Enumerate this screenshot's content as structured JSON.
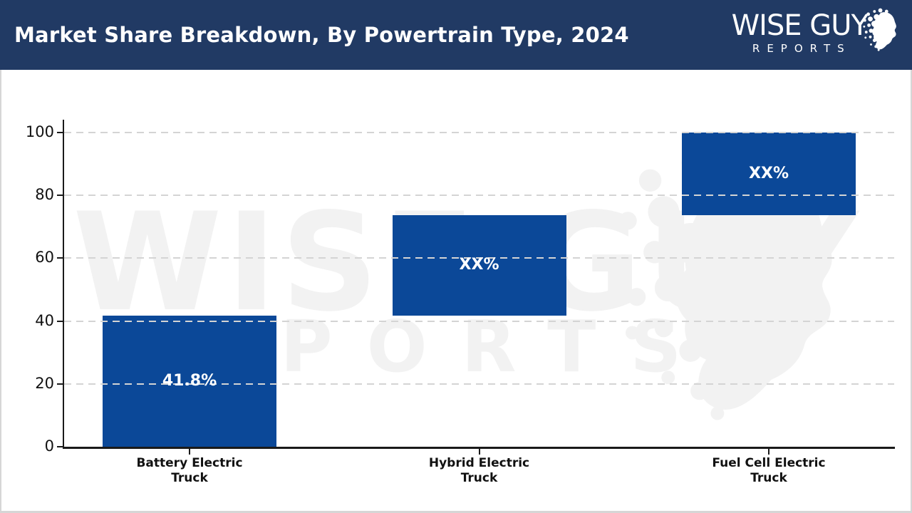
{
  "header": {
    "title": "Market Share Breakdown, By Powertrain Type, 2024",
    "logo": {
      "line1": "WISE GUY",
      "line2": "REPORTS"
    },
    "background_color": "#213a64"
  },
  "watermark": {
    "line1": "WISE GUY",
    "line2": "REPORTS"
  },
  "chart_data": {
    "type": "bar",
    "variant": "floating-segment-waterfall",
    "title": "Market Share Breakdown, By Powertrain Type, 2024",
    "categories": [
      "Battery Electric\nTruck",
      "Hybrid Electric\nTruck",
      "Fuel Cell Electric\nTruck"
    ],
    "segments": [
      {
        "category": "Battery Electric Truck",
        "start": 0,
        "end": 41.8,
        "label": "41.8%"
      },
      {
        "category": "Hybrid Electric Truck",
        "start": 41.8,
        "end": 73.7,
        "label": "XX%"
      },
      {
        "category": "Fuel Cell Electric Truck",
        "start": 73.7,
        "end": 100,
        "label": "XX%"
      }
    ],
    "y_ticks": [
      0,
      20,
      40,
      60,
      80,
      100
    ],
    "ylim": [
      0,
      104
    ],
    "grid": "horizontal-dashed",
    "legend": "none",
    "bar_color": "#0b4898",
    "bar_label_color": "#ffffff",
    "axis_color": "#1a1a1a",
    "gridline_color": "#d4d4d4"
  }
}
